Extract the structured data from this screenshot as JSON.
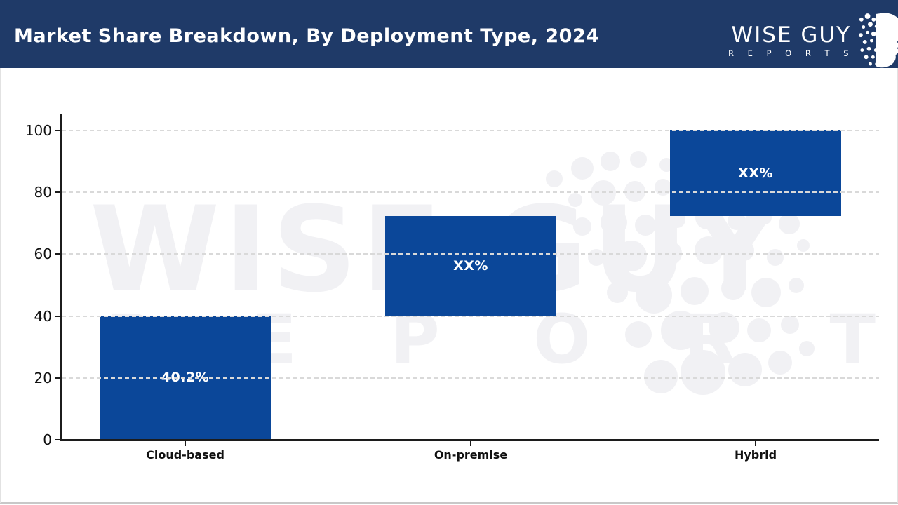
{
  "header": {
    "title": "Market Share Breakdown, By Deployment Type, 2024",
    "logo": {
      "line1": "WISE GUY",
      "line2": "R E P O R T S"
    }
  },
  "watermark": {
    "line1": "WISE GUY",
    "line2": "R E P O R T S"
  },
  "colors": {
    "header_bg": "#1f3a68",
    "bar_blue": "#0b4799",
    "grid_line": "#d9d9d9",
    "axis_black": "#1c1c1c",
    "watermark_gray": "#f1f1f4",
    "bar_label": "#ffffff",
    "tick_label": "#111111",
    "bottom_line": "#c8c8c8"
  },
  "chart_data": {
    "type": "bar",
    "subtype": "waterfall",
    "title": "Market Share Breakdown, By Deployment Type, 2024",
    "categories": [
      "Cloud-based",
      "On-premise",
      "Hybrid"
    ],
    "bars": [
      {
        "category": "Cloud-based",
        "start": 0,
        "end": 40.2,
        "label": "40.2%"
      },
      {
        "category": "On-premise",
        "start": 40.2,
        "end": 72.3,
        "label": "XX%"
      },
      {
        "category": "Hybrid",
        "start": 72.3,
        "end": 100,
        "label": "XX%"
      }
    ],
    "yticks": [
      0,
      20,
      40,
      60,
      80,
      100
    ],
    "ylim": [
      0,
      105
    ],
    "xlabel": "",
    "ylabel": "",
    "grid": "horizontal-dashed",
    "legend": "none"
  }
}
